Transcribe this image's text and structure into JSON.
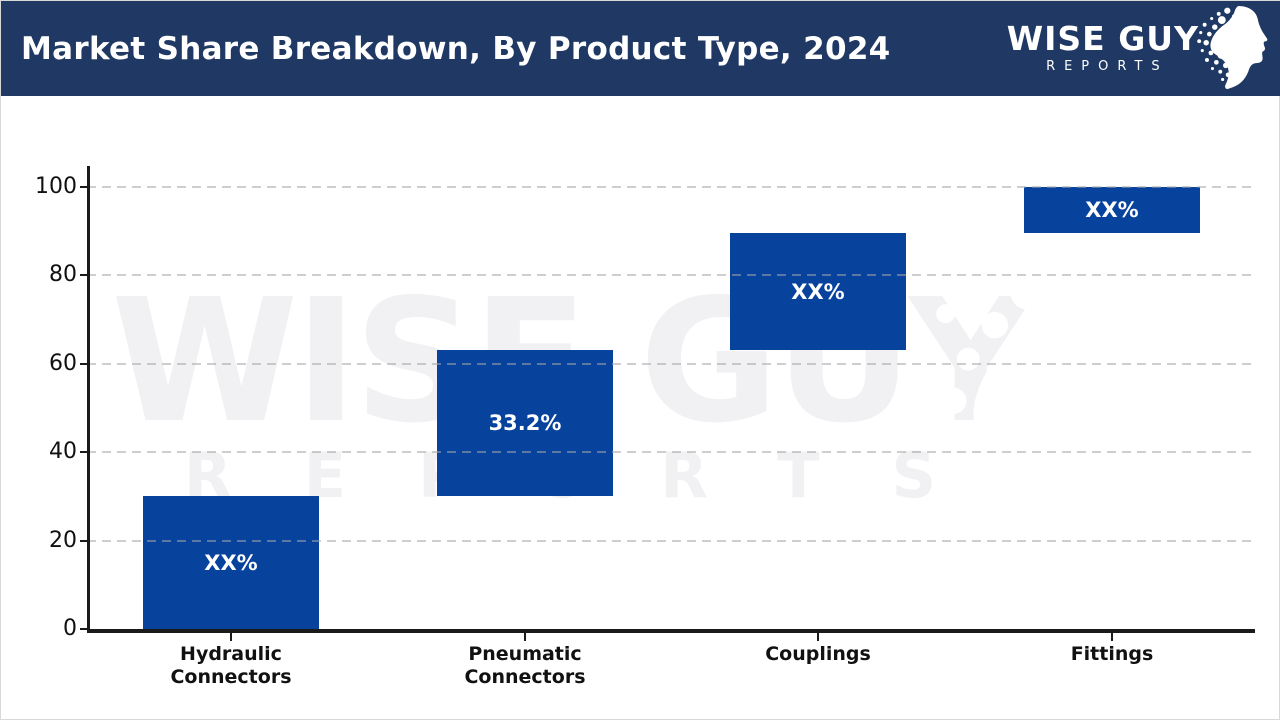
{
  "header": {
    "title": "Market Share Breakdown, By Product Type, 2024",
    "bg_color": "#1f3864",
    "logo": {
      "line1": "WISE GUY",
      "line2": "REPORTS"
    }
  },
  "watermark": {
    "line1": "WISE GUY",
    "line2": "REPORTS"
  },
  "chart_data": {
    "type": "bar",
    "subtype": "waterfall",
    "title": "Market Share Breakdown, By Product Type, 2024",
    "categories": [
      "Hydraulic\nConnectors",
      "Pneumatic\nConnectors",
      "Couplings",
      "Fittings"
    ],
    "segments": [
      {
        "category": "Hydraulic Connectors",
        "start": 0,
        "end": 30,
        "label": "XX%"
      },
      {
        "category": "Pneumatic Connectors",
        "start": 30,
        "end": 63.2,
        "label": "33.2%"
      },
      {
        "category": "Couplings",
        "start": 63.2,
        "end": 89.5,
        "label": "XX%"
      },
      {
        "category": "Fittings",
        "start": 89.5,
        "end": 100,
        "label": "XX%"
      }
    ],
    "yticks": [
      0,
      20,
      40,
      60,
      80,
      100
    ],
    "gridline_values": [
      20,
      40,
      60,
      80,
      100
    ],
    "ylim": [
      0,
      105
    ],
    "xlabel": "",
    "ylabel": "",
    "grid": "dashed-horizontal",
    "legend": "none",
    "bar_color": "#07429c",
    "bar_label_color": "#ffffff",
    "axis_color": "#1a1a1a",
    "background_color": "#ffffff"
  }
}
